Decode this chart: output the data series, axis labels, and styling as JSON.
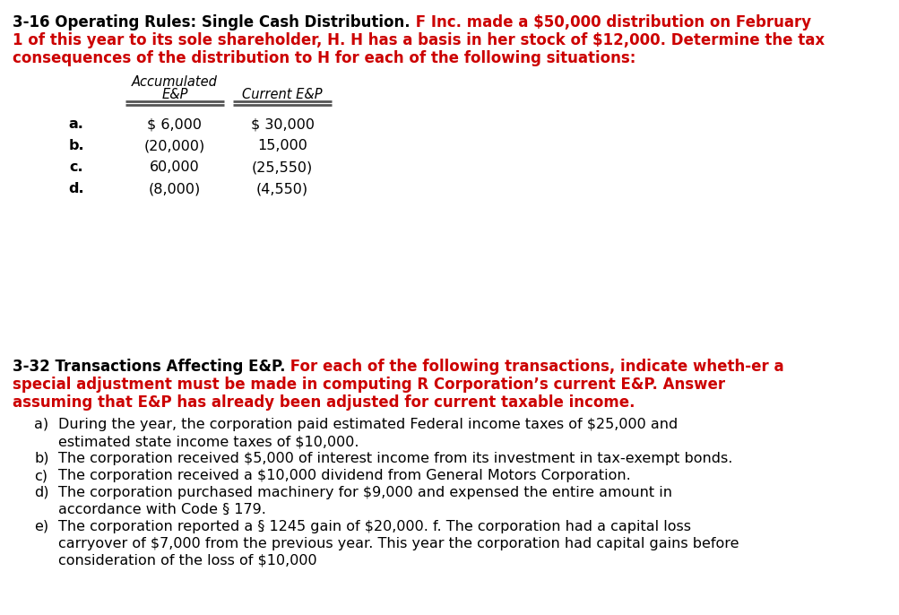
{
  "background_color": "#ffffff",
  "section1": {
    "heading_black": "3-16 Operating Rules: Single Cash Distribution.",
    "heading_red_lines": [
      " F Inc. made a $50,000 distribution on February",
      "1 of this year to its sole shareholder, H. H has a basis in her stock of $12,000. Determine the tax",
      "consequences of the distribution to H for each of the following situations:"
    ],
    "col_header1": "Accumulated",
    "col_header2": "E&P",
    "col_header3": "Current E&P",
    "rows": [
      {
        "label": "a.",
        "acc": "$ 6,000",
        "cur": "$ 30,000"
      },
      {
        "label": "b.",
        "acc": "(20,000)",
        "cur": "15,000"
      },
      {
        "label": "c.",
        "acc": "60,000",
        "cur": "(25,550)"
      },
      {
        "label": "d.",
        "acc": "(8,000)",
        "cur": "(4,550)"
      }
    ]
  },
  "section2": {
    "heading_black": "3-32 Transactions Affecting E&P.",
    "heading_red_lines": [
      " For each of the following transactions, indicate wheth-er a",
      "special adjustment must be made in computing R Corporation’s current E&P. Answer",
      "assuming that E&P has already been adjusted for current taxable income."
    ],
    "items": [
      {
        "letter": "a)",
        "text": "During the year, the corporation paid estimated Federal income taxes of $25,000 and\nestimated state income taxes of $10,000."
      },
      {
        "letter": "b)",
        "text": "The corporation received $5,000 of interest income from its investment in tax-exempt bonds."
      },
      {
        "letter": "c)",
        "text": "The corporation received a $10,000 dividend from General Motors Corporation."
      },
      {
        "letter": "d)",
        "text": "The corporation purchased machinery for $9,000 and expensed the entire amount in\naccordance with Code § 179."
      },
      {
        "letter": "e)",
        "text": "The corporation reported a § 1245 gain of $20,000. f. The corporation had a capital loss\ncarryover of $7,000 from the previous year. This year the corporation had capital gains before\nconsideration of the loss of $10,000"
      }
    ]
  },
  "font_size_heading": 12.0,
  "font_size_table_header": 10.5,
  "font_size_body": 11.5,
  "font_size_table": 11.5,
  "red_color": "#cc0000",
  "black_color": "#000000",
  "gray_color": "#555555"
}
